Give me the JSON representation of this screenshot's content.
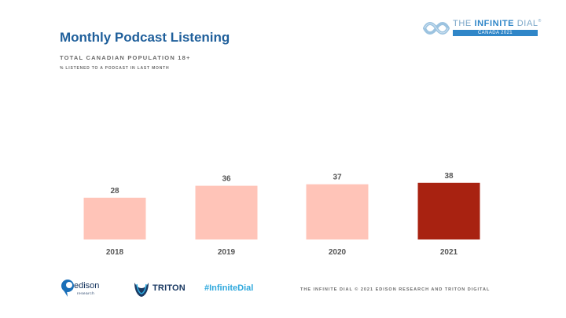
{
  "header": {
    "title": "Monthly Podcast Listening",
    "subtitle": "TOTAL CANADIAN POPULATION 18+",
    "note": "% LISTENED TO A PODCAST IN LAST MONTH"
  },
  "brand": {
    "light_word": "THE ",
    "strong_word": "INFINITE",
    "tail_word": " DIAL",
    "reg": "®",
    "edition": "CANADA 2021",
    "accent": "#2f86c8"
  },
  "chart_data": {
    "type": "bar",
    "categories": [
      "2018",
      "2019",
      "2020",
      "2021"
    ],
    "values": [
      28,
      36,
      37,
      38
    ],
    "colors": [
      "#ffc4b8",
      "#ffc4b8",
      "#ffc4b8",
      "#a82211"
    ],
    "title": "Monthly Podcast Listening",
    "xlabel": "",
    "ylabel": "",
    "ylim": [
      0,
      100
    ],
    "grid": false,
    "legend": "none",
    "data_labels": true
  },
  "footer": {
    "edison_name": "edison",
    "edison_sub": "research",
    "triton_name": "TRITON",
    "hashtag": "#InfiniteDial",
    "copyright": "THE INFINITE DIAL   © 2021 EDISON RESEARCH AND TRITON DIGITAL"
  }
}
